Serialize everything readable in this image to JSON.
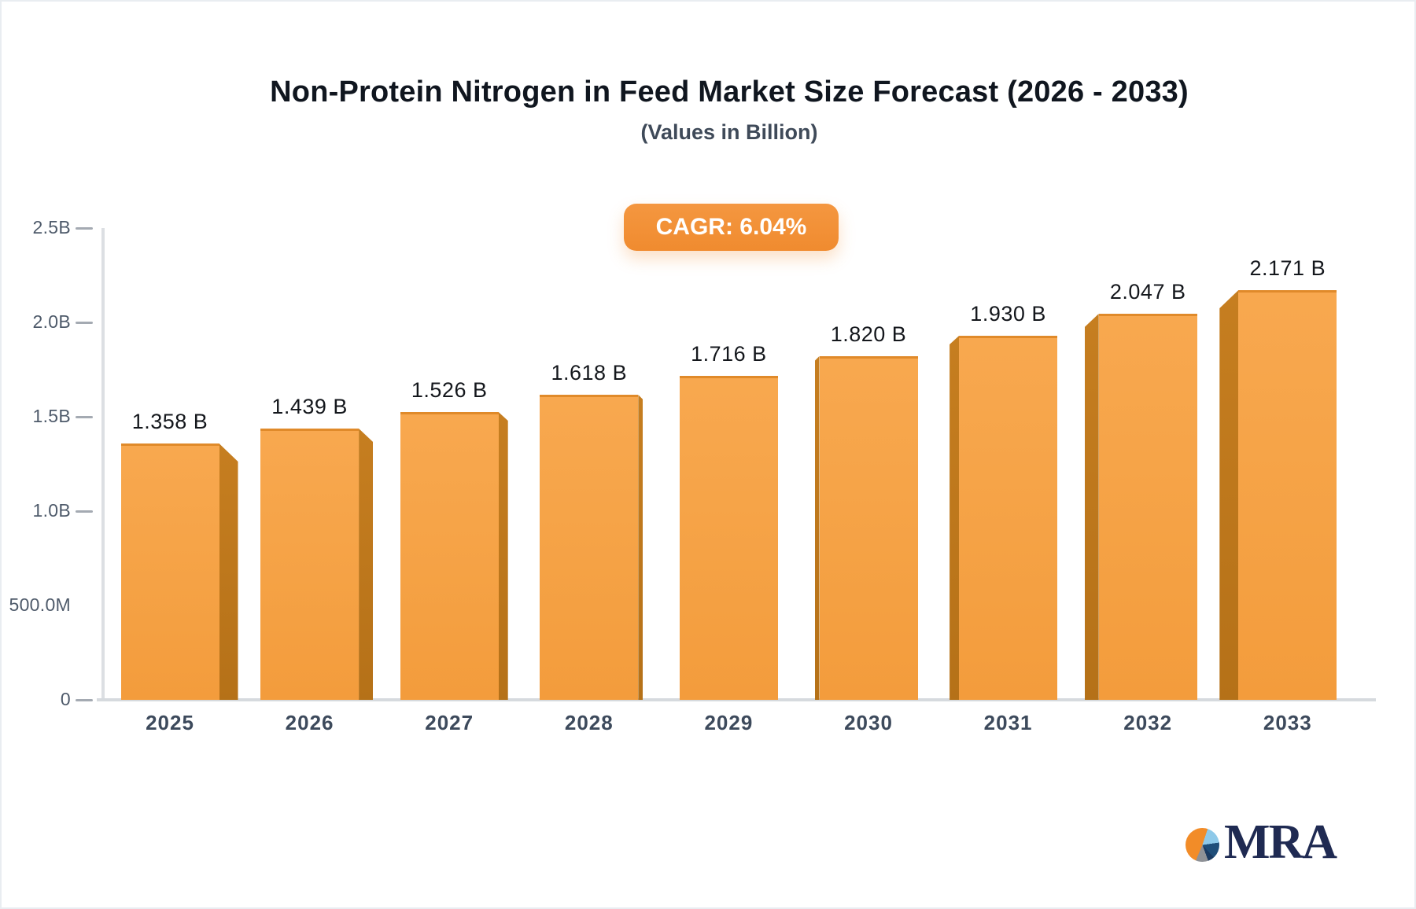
{
  "chart_data": {
    "type": "bar",
    "title": "Non-Protein Nitrogen in Feed Market Size Forecast (2026 - 2033)",
    "subtitle": "(Values in Billion)",
    "annotation": "CAGR: 6.04%",
    "categories": [
      "2025",
      "2026",
      "2027",
      "2028",
      "2029",
      "2030",
      "2031",
      "2032",
      "2033"
    ],
    "values": [
      1.358,
      1.439,
      1.526,
      1.618,
      1.716,
      1.82,
      1.93,
      2.047,
      2.171
    ],
    "value_labels": [
      "1.358 B",
      "1.439 B",
      "1.526 B",
      "1.618 B",
      "1.716 B",
      "1.820 B",
      "1.930 B",
      "2.047 B",
      "2.171 B"
    ],
    "unit": "Billion",
    "ylim": [
      0,
      2.5
    ],
    "y_ticks": [
      {
        "label": "2.5B",
        "value": 2.5,
        "tick": true
      },
      {
        "label": "2.0B",
        "value": 2.0,
        "tick": true
      },
      {
        "label": "1.5B",
        "value": 1.5,
        "tick": true
      },
      {
        "label": "1.0B",
        "value": 1.0,
        "tick": true
      },
      {
        "label": "500.0M",
        "value": 0.5,
        "tick": false
      },
      {
        "label": "0",
        "value": 0.0,
        "tick": true
      }
    ],
    "grid": false,
    "legend": "none",
    "bar_color": "#F5A245",
    "bar_side_color": "#BE761B",
    "badge_color": "#F28E35",
    "axis_color": "#DCDFE3"
  },
  "logo": {
    "text": "MRA",
    "pie_colors": [
      "#F28C28",
      "#8EC9E9",
      "#1F4E79",
      "#1A3A61",
      "#8E9196"
    ]
  }
}
